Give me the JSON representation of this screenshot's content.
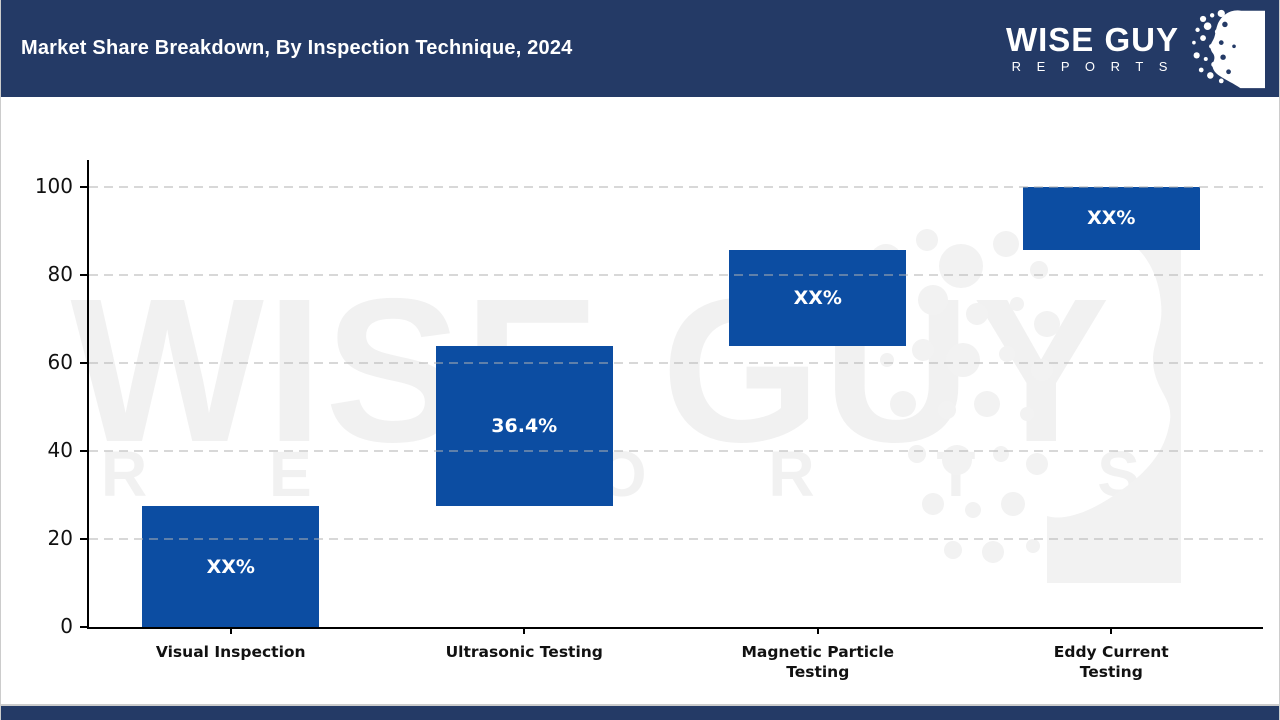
{
  "header": {
    "title": "Market Share Breakdown, By Inspection Technique, 2024",
    "logo": {
      "name": "WISE GUY",
      "sub": "R E P O R T S"
    }
  },
  "watermark": {
    "big": "WISE GUY",
    "sub": "R E P O R T S"
  },
  "chart_data": {
    "type": "bar",
    "variant": "floating-waterfall",
    "title": "Market Share Breakdown, By Inspection Technique, 2024",
    "categories": [
      "Visual Inspection",
      "Ultrasonic Testing",
      "Magnetic Particle Testing",
      "Eddy Current Testing"
    ],
    "values": [
      27.5,
      36.4,
      21.8,
      14.3
    ],
    "bars": [
      {
        "category_lines": [
          "Visual Inspection"
        ],
        "base": 0,
        "top": 27.5,
        "label": "XX%"
      },
      {
        "category_lines": [
          "Ultrasonic Testing"
        ],
        "base": 27.5,
        "top": 63.9,
        "label": "36.4%"
      },
      {
        "category_lines": [
          "Magnetic Particle",
          "Testing"
        ],
        "base": 63.9,
        "top": 85.7,
        "label": "XX%"
      },
      {
        "category_lines": [
          "Eddy Current",
          "Testing"
        ],
        "base": 85.7,
        "top": 100,
        "label": "XX%"
      }
    ],
    "yticks": [
      0,
      20,
      40,
      60,
      80,
      100
    ],
    "ylim": [
      0,
      106
    ],
    "xlabel": "",
    "ylabel": "",
    "grid": {
      "horizontal": true,
      "style": "dashed"
    },
    "legend": "none",
    "bar_color": "#0c4da2",
    "bar_label_color": "#ffffff"
  },
  "colors": {
    "header_bg": "#243a66",
    "footer_bg": "#243a66",
    "bar": "#0c4da2",
    "axis": "#000000",
    "gridline": "#dcdcdc",
    "watermark": "#f1f1f1",
    "page_bg": "#ffffff"
  }
}
